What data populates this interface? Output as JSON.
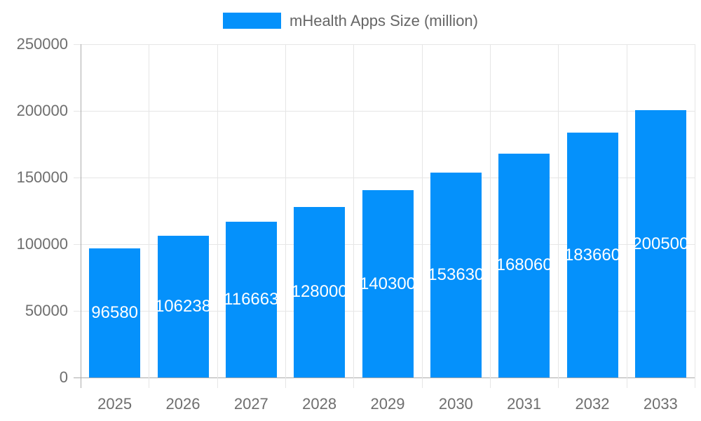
{
  "chart_data": {
    "type": "bar",
    "legend": "mHealth Apps Size (million)",
    "legend_position": "top",
    "categories": [
      "2025",
      "2026",
      "2027",
      "2028",
      "2029",
      "2030",
      "2031",
      "2032",
      "2033"
    ],
    "series": [
      {
        "name": "mHealth Apps Size (million)",
        "values": [
          96580,
          106238,
          116663,
          128000,
          140300,
          153630,
          168060,
          183660,
          200500
        ]
      }
    ],
    "value_labels": [
      "96580",
      "106238",
      "116663",
      "128000",
      "140300",
      "153630",
      "168060",
      "183660",
      "200500"
    ],
    "xlabel": "",
    "ylabel": "",
    "ylim": [
      0,
      250000
    ],
    "y_ticks": [
      0,
      50000,
      100000,
      150000,
      200000,
      250000
    ],
    "y_tick_labels": [
      "0",
      "50000",
      "100000",
      "150000",
      "200000",
      "250000"
    ],
    "grid": true,
    "colors": {
      "bar": "#0591fb",
      "gridline": "#e6e6e6",
      "axis_line": "#ababab",
      "tick_label": "#6e6e6e",
      "legend_text": "#666666",
      "value_label": "#ffffff",
      "background": "#ffffff"
    }
  }
}
